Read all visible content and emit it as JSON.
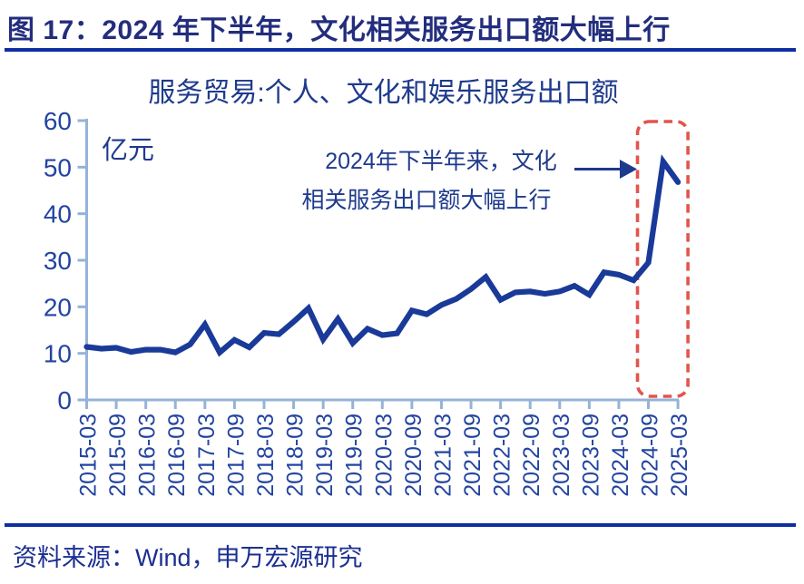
{
  "header": {
    "title": "图 17：2024 年下半年，文化相关服务出口额大幅上行"
  },
  "footer": {
    "source": "资料来源：Wind，申万宏源研究"
  },
  "colors": {
    "title_text": "#232d7d",
    "rule": "#0f2da3",
    "chart_text": "#1e3a8c",
    "tick_text": "#2344a0",
    "line": "#1a3a99",
    "axis": "#95b3d7",
    "highlight": "#e0554d",
    "arrow": "#1e3a8c",
    "source_text": "#1b2f91",
    "background": "#ffffff"
  },
  "chart_data": {
    "type": "line",
    "title": "服务贸易:个人、文化和娱乐服务出口额",
    "series_name": "服务贸易:个人、文化和娱乐服务出口额",
    "unit_label": "亿元",
    "ylabel": "亿元",
    "xlabel": "",
    "ylim": [
      0,
      60
    ],
    "y_ticks": [
      0,
      10,
      20,
      30,
      40,
      50,
      60
    ],
    "x_tick_every": 2,
    "grid": false,
    "legend": false,
    "x": [
      "2015-03",
      "2015-06",
      "2015-09",
      "2015-12",
      "2016-03",
      "2016-06",
      "2016-09",
      "2016-12",
      "2017-03",
      "2017-06",
      "2017-09",
      "2017-12",
      "2018-03",
      "2018-06",
      "2018-09",
      "2018-12",
      "2019-03",
      "2019-06",
      "2019-09",
      "2019-12",
      "2020-03",
      "2020-06",
      "2020-09",
      "2020-12",
      "2021-03",
      "2021-06",
      "2021-09",
      "2021-12",
      "2022-03",
      "2022-06",
      "2022-09",
      "2022-12",
      "2023-03",
      "2023-06",
      "2023-09",
      "2023-12",
      "2024-03",
      "2024-06",
      "2024-09",
      "2024-12",
      "2025-03"
    ],
    "values": [
      11.4,
      11.0,
      11.2,
      10.3,
      10.8,
      10.8,
      10.2,
      11.9,
      16.2,
      10.2,
      12.9,
      11.3,
      14.4,
      14.1,
      16.8,
      19.7,
      13.0,
      17.4,
      12.2,
      15.3,
      13.9,
      14.3,
      19.2,
      18.4,
      20.4,
      21.7,
      23.8,
      26.4,
      21.5,
      23.1,
      23.3,
      22.8,
      23.3,
      24.5,
      22.6,
      27.4,
      26.9,
      25.7,
      29.5,
      51.2,
      46.8
    ],
    "annotation": {
      "line1": "2024年下半年来，文化",
      "line2": "相关服务出口额大幅上行"
    },
    "highlight_box": {
      "x_from": "2024-09",
      "x_to": "2025-03",
      "style": "dashed-rounded"
    }
  }
}
